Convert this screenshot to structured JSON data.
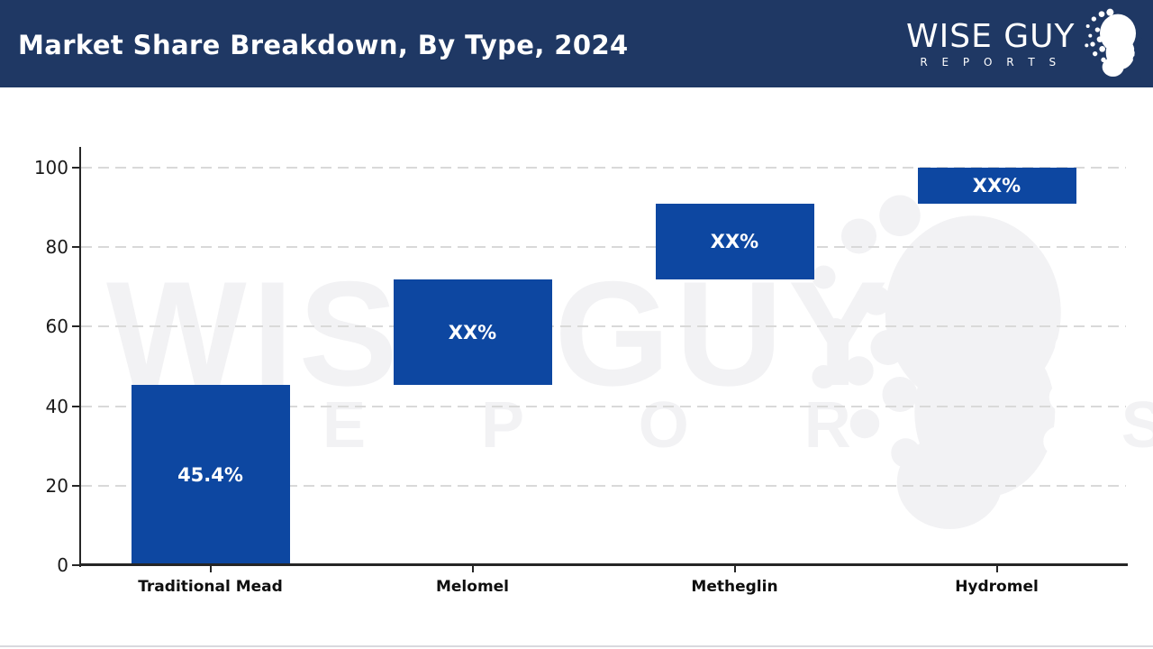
{
  "header": {
    "title": "Market Share Breakdown, By Type, 2024",
    "logo": {
      "brand_line1": "WISE GUY",
      "brand_line2": "R E P O R T S"
    }
  },
  "watermark": {
    "line1": "WISE GUY",
    "line2": "R E P O R T S"
  },
  "chart_data": {
    "type": "bar",
    "subtype": "waterfall",
    "title": "Market Share Breakdown, By Type, 2024",
    "categories": [
      "Traditional Mead",
      "Melomel",
      "Metheglin",
      "Hydromel"
    ],
    "segments": [
      {
        "category": "Traditional Mead",
        "label": "45.4%",
        "start": 0,
        "end": 45.4
      },
      {
        "category": "Melomel",
        "label": "XX%",
        "start": 45.4,
        "end": 71.8
      },
      {
        "category": "Metheglin",
        "label": "XX%",
        "start": 71.8,
        "end": 90.9
      },
      {
        "category": "Hydromel",
        "label": "XX%",
        "start": 90.9,
        "end": 100
      }
    ],
    "xlabel": "",
    "ylabel": "",
    "ylim": [
      0,
      100
    ],
    "yticks": [
      0,
      20,
      40,
      60,
      80,
      100
    ],
    "grid": "horizontal-dashed",
    "legend": "none",
    "bar_color": "#0d47a1",
    "header_color": "#1f3864"
  }
}
